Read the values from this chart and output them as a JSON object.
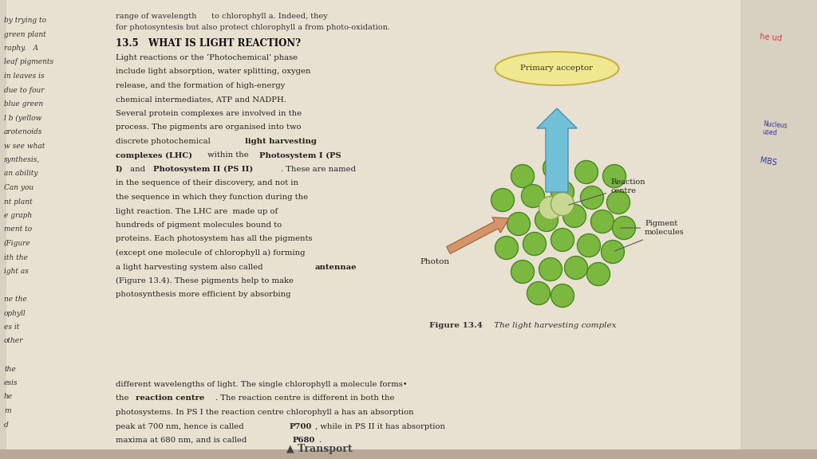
{
  "background_color": "#d8d0c0",
  "page_bg": "#e8e0d0",
  "title": "13.5   WHAT IS LIGHT REACTION?",
  "figure_caption_bold": "Figure 13.4",
  "figure_caption_rest": " The light harvesting complex",
  "primary_acceptor_label": "Primary acceptor",
  "primary_acceptor_bg": "#f0e890",
  "primary_acceptor_border": "#c8b040",
  "arrow_color": "#70c0d8",
  "arrow_outline": "#5090b0",
  "photon_label": "Photon",
  "photon_arrow_color": "#d4956a",
  "reaction_centre_label": "Reaction\ncentre",
  "pigment_molecules_label": "Pigment\nmolecules",
  "circle_fill": "#7ab840",
  "circle_edge": "#4a8820",
  "reaction_centre_fill": "#c8d890",
  "reaction_centre_edge": "#8aaa50",
  "left_margin_text": [
    "by trying to",
    "green plant",
    "raphy.   A",
    "leaf pigments",
    "in leaves is",
    "due to four",
    "blue green",
    "l b (yellow",
    "arotenoids",
    "w see what",
    "synthesis,",
    "an ability",
    "Can you",
    "nt plant",
    "e graph",
    "ment to",
    "(Figure",
    "ith the",
    "ight as",
    "",
    "ne the",
    "ophyll",
    "es it",
    "other",
    "",
    "the",
    "esis",
    "he",
    "m",
    "d"
  ]
}
